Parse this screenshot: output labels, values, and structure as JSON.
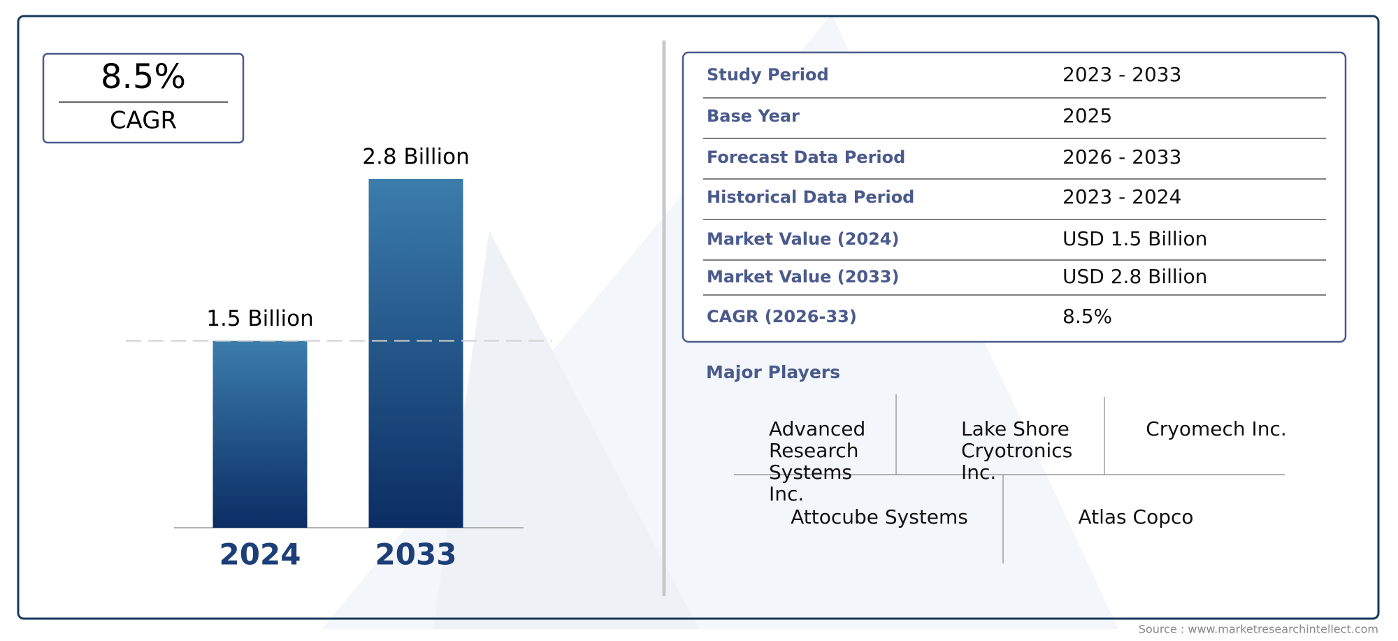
{
  "cagr_box": {
    "value": "8.5%",
    "label": "CAGR"
  },
  "chart_data": {
    "type": "bar",
    "categories": [
      "2024",
      "2033"
    ],
    "values": [
      1.5,
      2.8
    ],
    "value_labels": [
      "1.5 Billion",
      "2.8 Billion"
    ],
    "colors": [
      "#3b7dab",
      "#0b2d64"
    ]
  },
  "summary_table": {
    "rows": [
      [
        "Study Period",
        "2023 - 2033"
      ],
      [
        "Base Year",
        "2025"
      ],
      [
        "Forecast Data Period",
        "2026 - 2033"
      ],
      [
        "Historical Data Period",
        "2023 - 2024"
      ],
      [
        "Market Value (2024)",
        "USD 1.5 Billion"
      ],
      [
        "Market Value (2033)",
        "USD 2.8 Billion"
      ],
      [
        "CAGR (2026-33)",
        "8.5%"
      ]
    ]
  },
  "major_players": {
    "title": "Major Players",
    "names": [
      "Advanced Research Systems Inc.",
      "Lake Shore Cryotronics Inc.",
      "Cryomech Inc.",
      "Attocube Systems",
      "Atlas Copco"
    ]
  },
  "source": "Source : www.marketresearchintellect.com"
}
